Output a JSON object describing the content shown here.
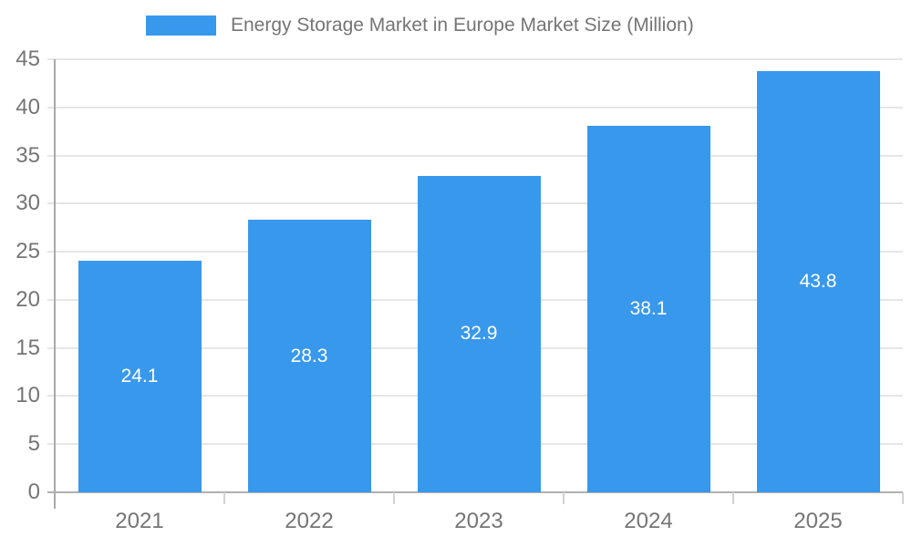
{
  "legend": {
    "label": "Energy Storage Market in Europe Market Size (Million)"
  },
  "colors": {
    "bar": "#3898EC",
    "tick_text": "#757575",
    "value_text": "#ffffff",
    "gridline": "#e6e6e6",
    "axis": "#a9a9a9"
  },
  "chart_data": {
    "type": "bar",
    "title": "Energy Storage Market in Europe Market Size (Million)",
    "categories": [
      "2021",
      "2022",
      "2023",
      "2024",
      "2025"
    ],
    "values": [
      24.1,
      28.3,
      32.9,
      38.1,
      43.8
    ],
    "series_name": "Energy Storage Market in Europe Market Size (Million)",
    "xlabel": "",
    "ylabel": "",
    "ylim": [
      0,
      45
    ],
    "ytick_step": 5,
    "ytick_labels": [
      "0",
      "5",
      "10",
      "15",
      "20",
      "25",
      "30",
      "35",
      "40",
      "45"
    ],
    "grid": true,
    "legend_position": "top",
    "value_label_position": "inside-center",
    "value_label_format": "one-decimal"
  }
}
